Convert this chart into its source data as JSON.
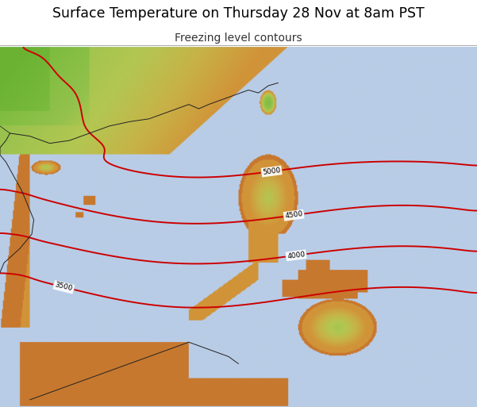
{
  "title": "Surface Temperature on Thursday 28 Nov at 8am PST",
  "subtitle": "Freezing level contours",
  "title_fontsize": 12.5,
  "subtitle_fontsize": 10,
  "fig_width": 6.01,
  "fig_height": 5.13,
  "dpi": 100,
  "header_bg": "#ffffff",
  "map_bg_ocean": "#b8cce4",
  "contour_color": "#cc0000",
  "contour_values": [
    3500,
    4000,
    4500,
    5000
  ],
  "title_color": "#000000",
  "subtitle_color": "#333333",
  "lon_min": 107.5,
  "lon_max": 131.5,
  "lat_min": 2.5,
  "lat_max": 27.5,
  "land_colors": {
    "ocean": [
      0.722,
      0.8,
      0.902
    ],
    "low": [
      0.784,
      0.471,
      0.188
    ],
    "mid": [
      0.82,
      0.58,
      0.22
    ],
    "high1": [
      0.78,
      0.7,
      0.28
    ],
    "high2": [
      0.7,
      0.78,
      0.32
    ],
    "high3": [
      0.58,
      0.76,
      0.3
    ],
    "high4": [
      0.5,
      0.74,
      0.25
    ],
    "vhigh": [
      0.42,
      0.7,
      0.2
    ],
    "peak": [
      0.52,
      0.74,
      0.3
    ]
  },
  "grid_color": "#9aaabb",
  "grid_alpha": 0.5,
  "border_color": "#222222",
  "border_width": 0.7
}
